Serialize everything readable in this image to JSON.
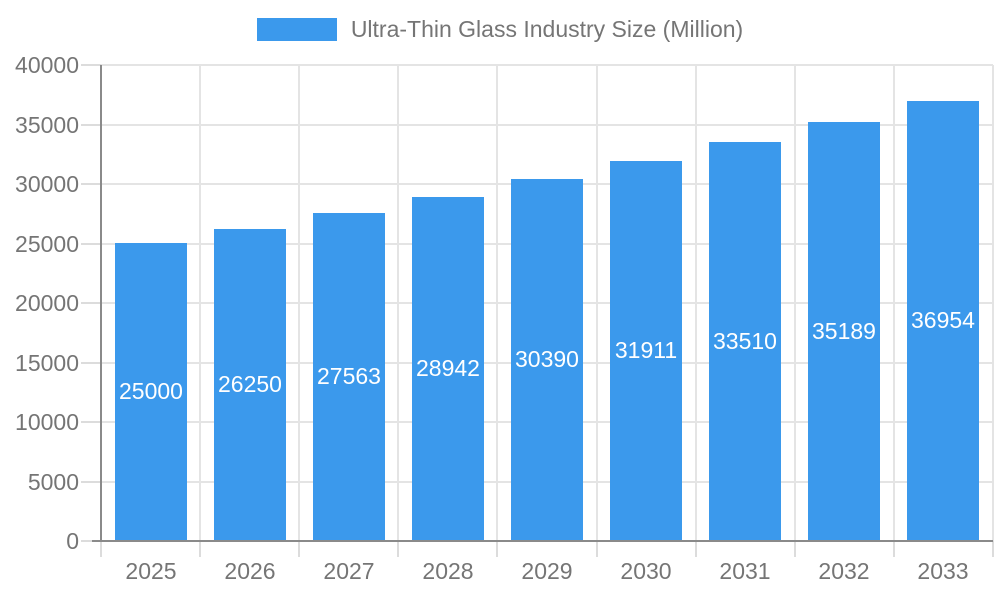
{
  "chart_data": {
    "type": "bar",
    "title": "Ultra-Thin Glass Industry Size (Million)",
    "legend_position": "top",
    "categories": [
      "2025",
      "2026",
      "2027",
      "2028",
      "2029",
      "2030",
      "2031",
      "2032",
      "2033"
    ],
    "values": [
      25000,
      26250,
      27563,
      28942,
      30390,
      31911,
      33510,
      35189,
      36954
    ],
    "xlabel": "",
    "ylabel": "",
    "ylim": [
      0,
      40000
    ],
    "yticks": [
      0,
      5000,
      10000,
      15000,
      20000,
      25000,
      30000,
      35000,
      40000
    ],
    "grid": true,
    "value_labels_visible": true,
    "colors": {
      "bar": "#3B99EC",
      "axis_line": "#8A8A8A",
      "gridline": "#E4E4E4",
      "tick": "#DCDCDC",
      "axis_label": "#757575",
      "value_label": "#FFFFFF",
      "background": "#FFFFFF"
    }
  }
}
